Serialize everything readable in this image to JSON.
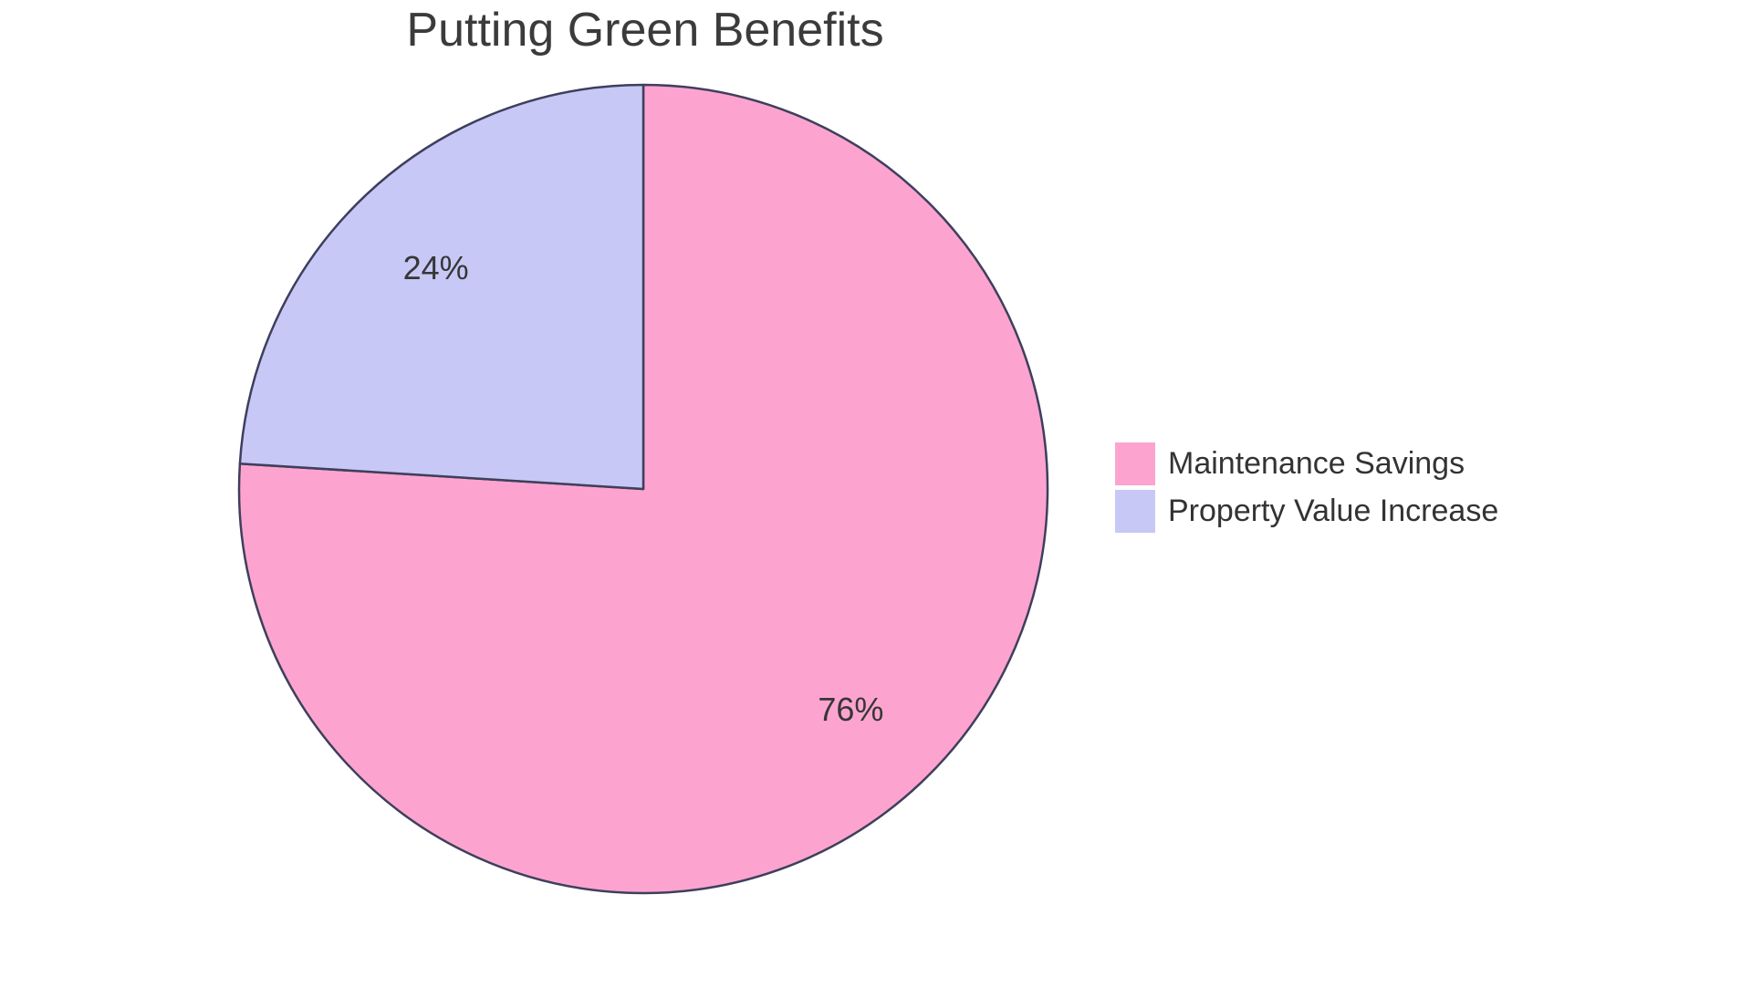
{
  "title": "Putting Green Benefits",
  "chart_data": {
    "type": "pie",
    "title": "Putting Green Benefits",
    "labels": [
      "Maintenance Savings",
      "Property Value Increase"
    ],
    "values": [
      76,
      24
    ],
    "value_unit": "percent",
    "slice_labels": [
      "76%",
      "24%"
    ],
    "colors": [
      "#FCA4CF",
      "#C8C8F6"
    ],
    "outline_color": "#3E3F5C",
    "label_text_color": "#363636",
    "start_angle": "top",
    "direction": "clockwise",
    "legend_position": "right"
  },
  "legend": {
    "items": [
      {
        "label": "Maintenance Savings",
        "color": "#FCA4CF"
      },
      {
        "label": "Property Value Increase",
        "color": "#C8C8F6"
      }
    ]
  }
}
